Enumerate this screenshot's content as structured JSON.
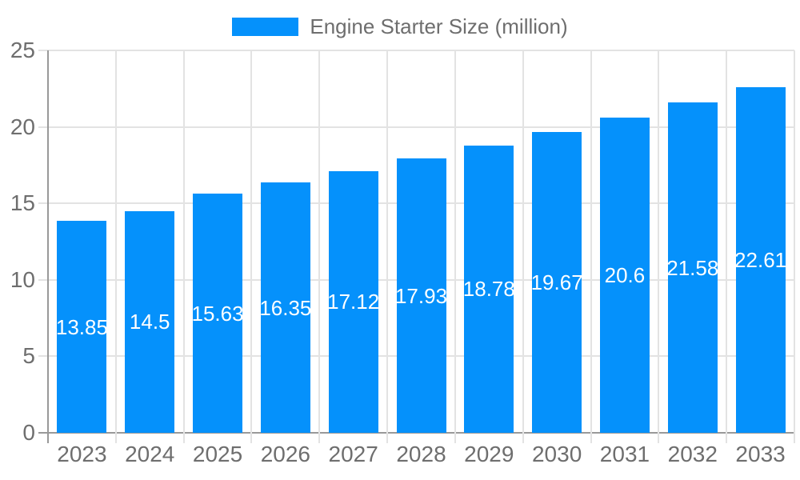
{
  "chart_data": {
    "type": "bar",
    "title": "Engine Starter Size (million)",
    "categories": [
      "2023",
      "2024",
      "2025",
      "2026",
      "2027",
      "2028",
      "2029",
      "2030",
      "2031",
      "2032",
      "2033"
    ],
    "values": [
      13.85,
      14.5,
      15.63,
      16.35,
      17.12,
      17.93,
      18.78,
      19.67,
      20.6,
      21.58,
      22.61
    ],
    "xlabel": "",
    "ylabel": "",
    "ylim": [
      0,
      25
    ],
    "yticks": [
      0,
      5,
      10,
      15,
      20,
      25
    ],
    "grid": true,
    "legend_position": "top-center",
    "value_labels": "centered-inside-bars",
    "bar_color": "#0591fb",
    "grid_color": "#e3e3e3",
    "axis_color": "#999999",
    "tick_label_color": "#6e6e6e",
    "value_label_color": "#ffffff",
    "background_color": "#ffffff"
  }
}
